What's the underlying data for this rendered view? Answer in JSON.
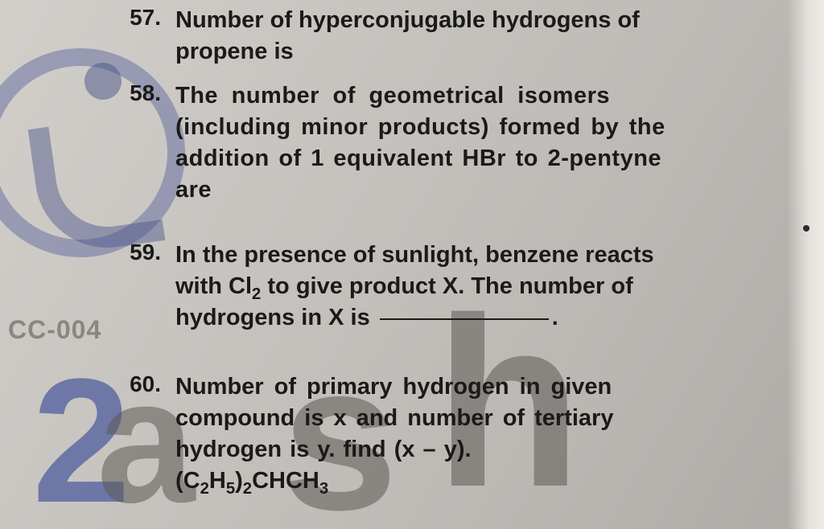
{
  "watermark": {
    "cc_code": "CC-004"
  },
  "questions": {
    "q57": {
      "number": "57.",
      "text_l1": "Number of hyperconjugable hydrogens of",
      "text_l2": "propene is"
    },
    "q58": {
      "number": "58.",
      "text_l1": "The number of geometrical isomers",
      "text_l2": "(including minor products) formed by the",
      "text_l3": "addition of 1 equivalent HBr to 2-pentyne",
      "text_l4": "are"
    },
    "q59": {
      "number": "59.",
      "text_l1": "In the presence of sunlight, benzene reacts",
      "text_l2a": "with Cl",
      "text_l2b": " to give product X. The number of",
      "text_l3": "hydrogens in X is",
      "period": "."
    },
    "q60": {
      "number": "60.",
      "text_l1": "Number of primary hydrogen in given",
      "text_l2": "compound is x and number of tertiary",
      "text_l3": "hydrogen is y. find (x – y).",
      "formula_a": "(C",
      "formula_b": "H",
      "formula_c": ")",
      "formula_d": "CHCH"
    },
    "subs": {
      "two": "2",
      "five": "5",
      "three": "3"
    }
  }
}
